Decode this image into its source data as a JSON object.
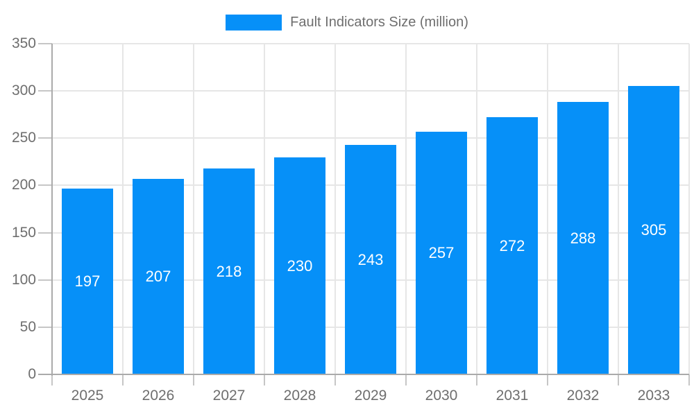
{
  "legend": {
    "label": "Fault Indicators Size (million)",
    "color": "#0690F8"
  },
  "chart_data": {
    "type": "bar",
    "categories": [
      "2025",
      "2026",
      "2027",
      "2028",
      "2029",
      "2030",
      "2031",
      "2032",
      "2033"
    ],
    "values": [
      197,
      207,
      218,
      230,
      243,
      257,
      272,
      288,
      305
    ],
    "series": [
      {
        "name": "Fault Indicators Size (million)",
        "values": [
          197,
          207,
          218,
          230,
          243,
          257,
          272,
          288,
          305
        ]
      }
    ],
    "xlabel": "",
    "ylabel": "",
    "ylim": [
      0,
      350
    ],
    "ytick_interval": 50,
    "ytick_labels": [
      "0",
      "50",
      "100",
      "150",
      "200",
      "250",
      "300",
      "350"
    ],
    "grid": true,
    "legend_position": "top-center",
    "bar_color": "#0690F8",
    "value_label_position": "inside-center",
    "value_label_color": "#FFFFFF"
  },
  "colors": {
    "bar": "#0690F8",
    "grid": "#E6E6E6",
    "tick": "#C6C6C6",
    "axis": "#AAAAAA",
    "axis_text": "#6E6E6E",
    "value_text": "#FFFFFF",
    "background": "#FFFFFF"
  }
}
